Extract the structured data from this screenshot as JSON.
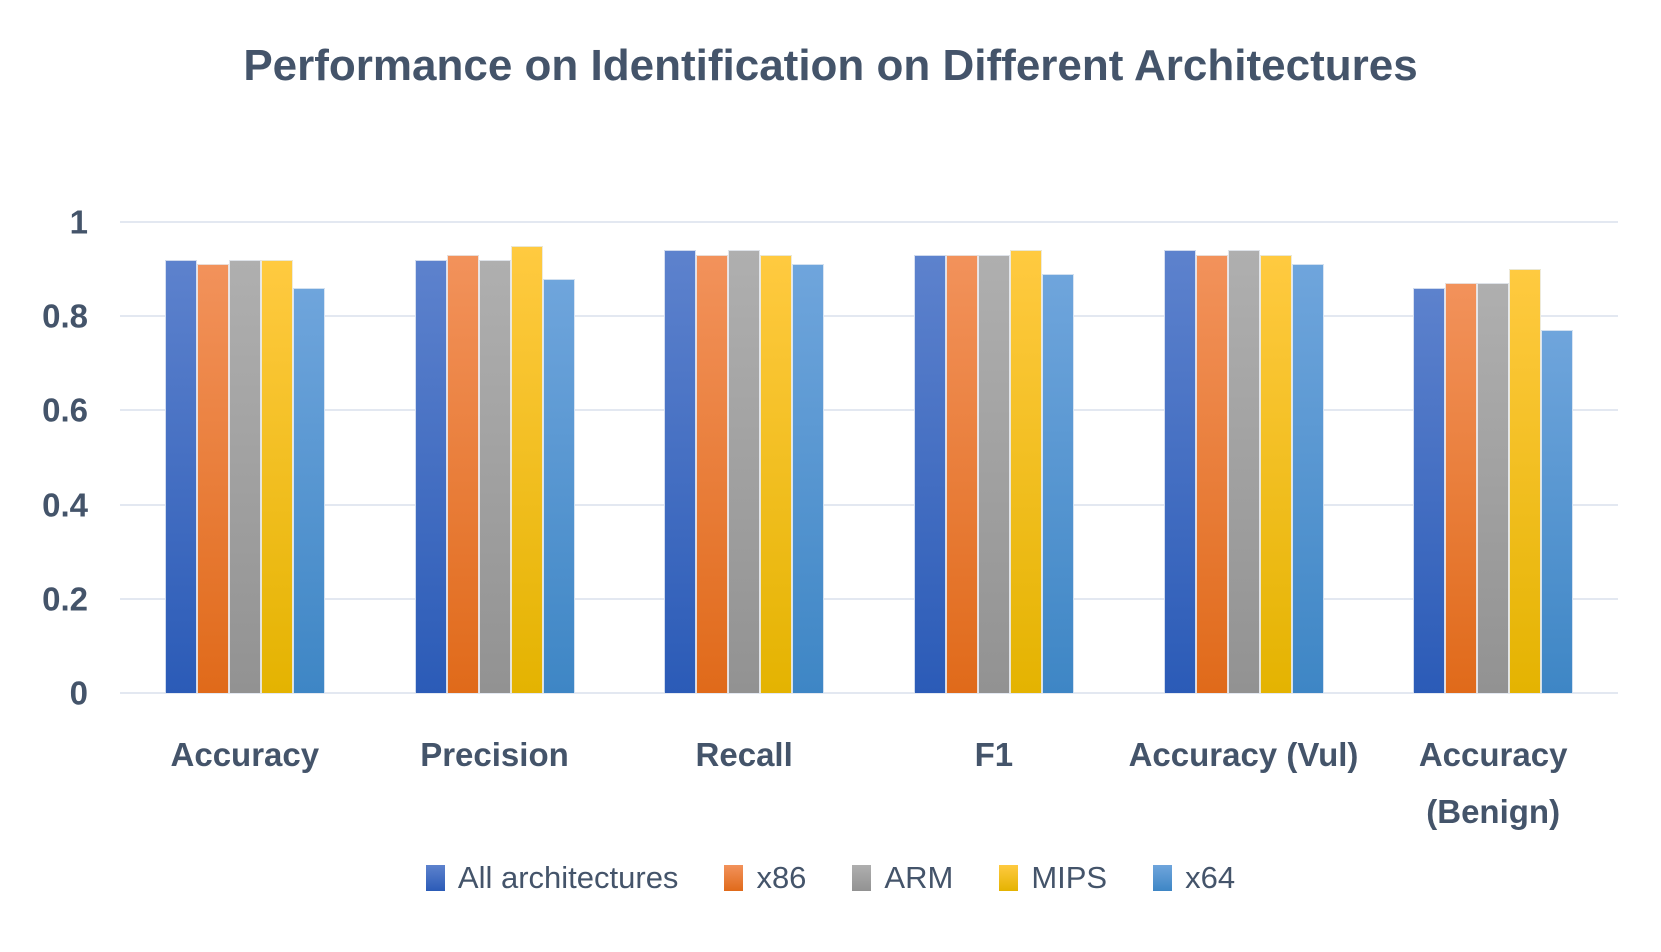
{
  "chart_data": {
    "type": "bar",
    "title": "Performance on Identification on Different Architectures",
    "categories": [
      "Accuracy",
      "Precision",
      "Recall",
      "F1",
      "Accuracy (Vul)",
      "Accuracy (Benign)"
    ],
    "series": [
      {
        "name": "All architectures",
        "color": "#4472C4",
        "color_top": "#5D82CD",
        "color_bottom": "#2B5BB7",
        "values": [
          0.92,
          0.92,
          0.94,
          0.93,
          0.94,
          0.86
        ]
      },
      {
        "name": "x86",
        "color": "#ED7D31",
        "color_top": "#F2925B",
        "color_bottom": "#E06A1A",
        "values": [
          0.91,
          0.93,
          0.93,
          0.93,
          0.93,
          0.87
        ]
      },
      {
        "name": "ARM",
        "color": "#A5A5A5",
        "color_top": "#AFAFAF",
        "color_bottom": "#929292",
        "values": [
          0.92,
          0.92,
          0.94,
          0.93,
          0.94,
          0.87
        ]
      },
      {
        "name": "MIPS",
        "color": "#FFC000",
        "color_top": "#FFCA40",
        "color_bottom": "#E4B301",
        "values": [
          0.92,
          0.95,
          0.93,
          0.94,
          0.93,
          0.9
        ]
      },
      {
        "name": "x64",
        "color": "#5B9BD5",
        "color_top": "#6FA5DC",
        "color_bottom": "#3E86C5",
        "values": [
          0.86,
          0.88,
          0.91,
          0.89,
          0.91,
          0.77
        ]
      }
    ],
    "y_ticks": [
      "1",
      "0.8",
      "0.6",
      "0.4",
      "0.2",
      "0"
    ],
    "ylim": [
      0,
      1
    ],
    "grid": true,
    "legend_position": "bottom"
  },
  "colors": {
    "text": "#44546A",
    "gridline": "#E3E8F1",
    "background": "#FFFFFF"
  }
}
